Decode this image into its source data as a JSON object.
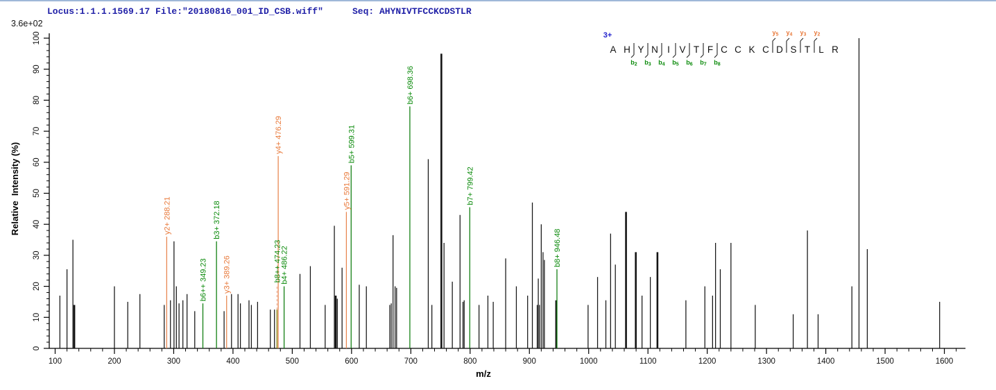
{
  "header": {
    "locus_file": "Locus:1.1.1.1569.17 File:\"20180816_001_ID_CSB.wiff\"",
    "seq": "Seq: AHYNIVTFCCKCDSTLR",
    "text_color": "#2121a8"
  },
  "plot": {
    "max_label": "3.6e+02",
    "ylabel": "Relative  Intensity (%)",
    "xlabel": "m/z"
  },
  "colors": {
    "black": "#141414",
    "green_line": "#0b7b0b",
    "green_label": "#0a8a0a",
    "orange_line": "#e8854e",
    "orange_label": "#e8793a",
    "olive_line": "#7e7e00",
    "leader_dash": "#eaa88e",
    "blue": "#2222cc",
    "axis": "#000000"
  },
  "fragment_map": {
    "charge_label": "3+",
    "residues": [
      "A",
      "H",
      "Y",
      "N",
      "I",
      "V",
      "T",
      "F",
      "C",
      "C",
      "K",
      "C",
      "D",
      "S",
      "T",
      "L",
      "R"
    ],
    "b_cuts": [
      {
        "base": "b",
        "sub": "2",
        "cut_index": 2
      },
      {
        "base": "b",
        "sub": "3",
        "cut_index": 3
      },
      {
        "base": "b",
        "sub": "4",
        "cut_index": 4
      },
      {
        "base": "b",
        "sub": "5",
        "cut_index": 5
      },
      {
        "base": "b",
        "sub": "6",
        "cut_index": 6
      },
      {
        "base": "b",
        "sub": "7",
        "cut_index": 7
      },
      {
        "base": "b",
        "sub": "8",
        "cut_index": 8
      }
    ],
    "y_cuts": [
      {
        "base": "y",
        "sub": "5",
        "cut_index": 12
      },
      {
        "base": "y",
        "sub": "4",
        "cut_index": 13
      },
      {
        "base": "y",
        "sub": "3",
        "cut_index": 14
      },
      {
        "base": "y",
        "sub": "2",
        "cut_index": 15
      }
    ]
  },
  "chart_data": {
    "type": "bar",
    "subtype": "ms2-stick-spectrum",
    "title": "MS/MS spectrum of AHYNIVTFCCKCDSTLR (3+), base peak 3.6e+02 counts",
    "xlabel": "m/z",
    "ylabel": "Relative  Intensity (%)",
    "xlim": [
      88,
      1636
    ],
    "ylim": [
      0,
      100
    ],
    "x_major_ticks": [
      100,
      200,
      300,
      400,
      500,
      600,
      700,
      800,
      900,
      1000,
      1100,
      1200,
      1300,
      1400,
      1500,
      1600
    ],
    "x_minor_step": 20,
    "x_minor_end": 1620,
    "y_major_ticks": [
      0,
      10,
      20,
      30,
      40,
      50,
      60,
      70,
      80,
      90,
      100
    ],
    "y_minor_step": 2,
    "grid": false,
    "legend": false,
    "peaks": [
      {
        "mz": 108,
        "i": 17
      },
      {
        "mz": 120,
        "i": 25.5
      },
      {
        "mz": 130,
        "i": 35
      },
      {
        "mz": 132.3,
        "i": 14,
        "w": 2
      },
      {
        "mz": 200,
        "i": 20
      },
      {
        "mz": 222.5,
        "i": 15
      },
      {
        "mz": 243,
        "i": 17.5
      },
      {
        "mz": 284,
        "i": 14
      },
      {
        "mz": 288.21,
        "i": 36,
        "c": "o",
        "label": "y2+ 288.21"
      },
      {
        "mz": 294.5,
        "i": 15.5
      },
      {
        "mz": 300.5,
        "i": 34.5
      },
      {
        "mz": 304.5,
        "i": 20
      },
      {
        "mz": 309,
        "i": 14.5
      },
      {
        "mz": 315.5,
        "i": 15.5
      },
      {
        "mz": 322.5,
        "i": 17.5
      },
      {
        "mz": 335.5,
        "i": 12
      },
      {
        "mz": 349.23,
        "i": 14.5,
        "c": "g",
        "label": "b6++ 349.23"
      },
      {
        "mz": 372.18,
        "i": 34.5,
        "c": "g",
        "label": "b3+ 372.18"
      },
      {
        "mz": 385,
        "i": 12
      },
      {
        "mz": 389.26,
        "i": 17,
        "c": "o",
        "label": "y3+ 389.26"
      },
      {
        "mz": 397.5,
        "i": 17.5
      },
      {
        "mz": 408.5,
        "i": 17.5
      },
      {
        "mz": 412.5,
        "i": 14.5
      },
      {
        "mz": 427,
        "i": 15.5
      },
      {
        "mz": 431,
        "i": 14
      },
      {
        "mz": 441.5,
        "i": 15
      },
      {
        "mz": 463,
        "i": 12.5
      },
      {
        "mz": 470,
        "i": 12.5
      },
      {
        "mz": 474.23,
        "i": 20.5,
        "c": "ol",
        "label": "b8++ 474.23",
        "label_c": "g",
        "dash_from": 12.5
      },
      {
        "mz": 476.29,
        "i": 62,
        "c": "o",
        "label": "y4+ 476.29"
      },
      {
        "mz": 486.22,
        "i": 20,
        "c": "g",
        "label": "b4+ 486.22"
      },
      {
        "mz": 513,
        "i": 24
      },
      {
        "mz": 530.5,
        "i": 26.5
      },
      {
        "mz": 555.5,
        "i": 14
      },
      {
        "mz": 571,
        "i": 39.5
      },
      {
        "mz": 573.3,
        "i": 17,
        "w": 2
      },
      {
        "mz": 576,
        "i": 16
      },
      {
        "mz": 584,
        "i": 26
      },
      {
        "mz": 591.29,
        "i": 44,
        "c": "o",
        "label": "y5+ 591.29"
      },
      {
        "mz": 599.31,
        "i": 59,
        "c": "g",
        "label": "b5+ 599.31"
      },
      {
        "mz": 613,
        "i": 20.5
      },
      {
        "mz": 625,
        "i": 20
      },
      {
        "mz": 664.5,
        "i": 14
      },
      {
        "mz": 667,
        "i": 14.5
      },
      {
        "mz": 670,
        "i": 36.5
      },
      {
        "mz": 673.5,
        "i": 20
      },
      {
        "mz": 676,
        "i": 19.5
      },
      {
        "mz": 698.36,
        "i": 78,
        "c": "g",
        "label": "b6+ 698.36"
      },
      {
        "mz": 729.4,
        "i": 61
      },
      {
        "mz": 735.5,
        "i": 14
      },
      {
        "mz": 751.5,
        "i": 95,
        "w": 2
      },
      {
        "mz": 756,
        "i": 34
      },
      {
        "mz": 770,
        "i": 21.5
      },
      {
        "mz": 783,
        "i": 43
      },
      {
        "mz": 788,
        "i": 15
      },
      {
        "mz": 790,
        "i": 15.5
      },
      {
        "mz": 799.42,
        "i": 45.5,
        "c": "g",
        "label": "b7+ 799.42"
      },
      {
        "mz": 815,
        "i": 14
      },
      {
        "mz": 830,
        "i": 17
      },
      {
        "mz": 839,
        "i": 15
      },
      {
        "mz": 860,
        "i": 29
      },
      {
        "mz": 878,
        "i": 20
      },
      {
        "mz": 897,
        "i": 17
      },
      {
        "mz": 905,
        "i": 47
      },
      {
        "mz": 913.2,
        "i": 14
      },
      {
        "mz": 915,
        "i": 22.5
      },
      {
        "mz": 917,
        "i": 14
      },
      {
        "mz": 920,
        "i": 40
      },
      {
        "mz": 923,
        "i": 31
      },
      {
        "mz": 925.3,
        "i": 28.5
      },
      {
        "mz": 945.2,
        "i": 15.5,
        "w": 2
      },
      {
        "mz": 946.48,
        "i": 25.5,
        "c": "g",
        "label": "b8+ 946.48"
      },
      {
        "mz": 999,
        "i": 14
      },
      {
        "mz": 1015,
        "i": 23
      },
      {
        "mz": 1029,
        "i": 15.5
      },
      {
        "mz": 1037,
        "i": 37
      },
      {
        "mz": 1045,
        "i": 27
      },
      {
        "mz": 1063,
        "i": 44,
        "w": 2
      },
      {
        "mz": 1079.5,
        "i": 31,
        "w": 2
      },
      {
        "mz": 1090,
        "i": 17
      },
      {
        "mz": 1104,
        "i": 23
      },
      {
        "mz": 1116,
        "i": 31,
        "w": 2
      },
      {
        "mz": 1164,
        "i": 15.5
      },
      {
        "mz": 1196,
        "i": 20
      },
      {
        "mz": 1209,
        "i": 17
      },
      {
        "mz": 1214,
        "i": 34
      },
      {
        "mz": 1222,
        "i": 25.5
      },
      {
        "mz": 1240,
        "i": 34
      },
      {
        "mz": 1281,
        "i": 14
      },
      {
        "mz": 1345,
        "i": 11
      },
      {
        "mz": 1369,
        "i": 38
      },
      {
        "mz": 1387,
        "i": 11
      },
      {
        "mz": 1444,
        "i": 20
      },
      {
        "mz": 1456,
        "i": 100
      },
      {
        "mz": 1470,
        "i": 32
      },
      {
        "mz": 1592,
        "i": 15
      }
    ]
  }
}
